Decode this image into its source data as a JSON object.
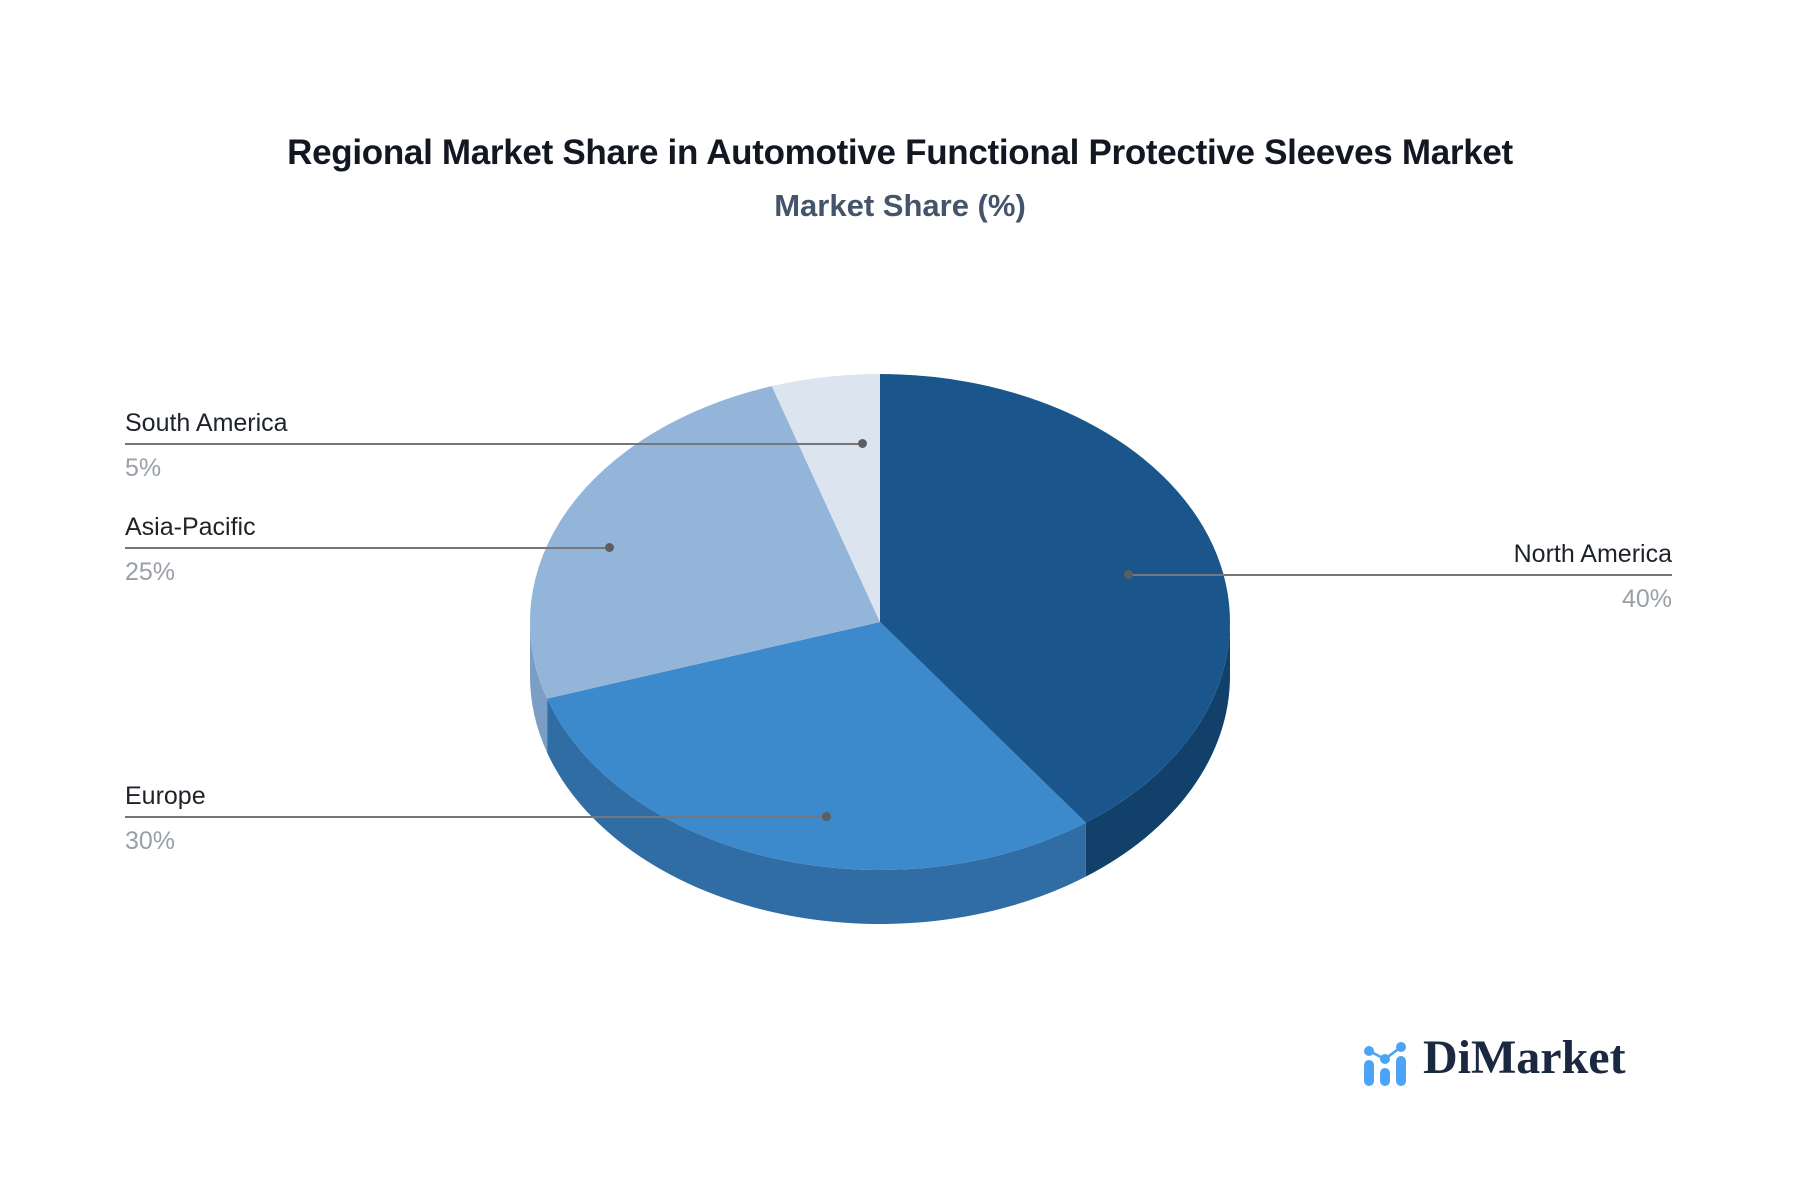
{
  "title": "Regional Market Share in Automotive Functional Protective Sleeves Market",
  "subtitle": "Market Share (%)",
  "chart_data": {
    "type": "pie",
    "style": "3d",
    "title": "Regional Market Share in Automotive Functional Protective Sleeves Market",
    "subtitle": "Market Share (%)",
    "unit": "%",
    "direction": "clockwise",
    "start_angle": "12-oclock",
    "legend_position": "callout-labels",
    "slices": [
      {
        "label": "North America",
        "value": 40,
        "pct_label": "40%",
        "color": "#1A568C",
        "side_color": "#11406B"
      },
      {
        "label": "Europe",
        "value": 30,
        "pct_label": "30%",
        "color": "#3C89CB",
        "side_color": "#2F6DA4"
      },
      {
        "label": "Asia-Pacific",
        "value": 25,
        "pct_label": "25%",
        "color": "#93B5DA",
        "side_color": "#7B9EC7"
      },
      {
        "label": "South America",
        "value": 5,
        "pct_label": "5%",
        "color": "#DCE4EF",
        "side_color": "#C2CFE3"
      }
    ],
    "palette": {
      "leader_line": "#76777a",
      "leader_dot": "#5d5e60",
      "label_text": "#1e2229",
      "value_text": "#9aa0a6",
      "subtitle_text": "#44546a",
      "title_text": "#131722"
    }
  },
  "brand": {
    "name": "DiMarket",
    "icon": "mini-bar-chart-icon",
    "icon_color": "#4da3f5",
    "text_color": "#1b2940"
  }
}
